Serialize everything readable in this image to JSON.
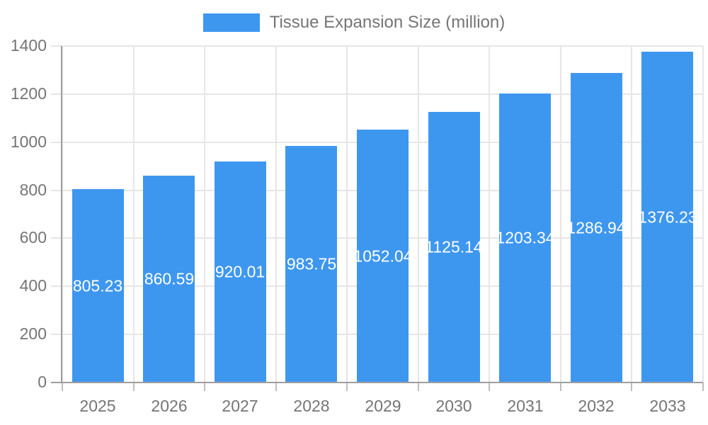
{
  "legend": {
    "label": "Tissue Expansion Size (million)",
    "swatch_color": "#3E97EF"
  },
  "chart_data": {
    "type": "bar",
    "title": "Tissue Expansion Size (million)",
    "series_name": "Tissue Expansion Size (million)",
    "categories": [
      "2025",
      "2026",
      "2027",
      "2028",
      "2029",
      "2030",
      "2031",
      "2032",
      "2033"
    ],
    "values": [
      805.23,
      860.59,
      920.01,
      983.75,
      1052.04,
      1125.14,
      1203.34,
      1286.94,
      1376.23
    ],
    "value_labels": [
      "805.23",
      "860.59",
      "920.01",
      "983.75",
      "1052.04",
      "1125.14",
      "1203.34",
      "1286.94",
      "1376.23"
    ],
    "xlabel": "",
    "ylabel": "",
    "ylim": [
      0,
      1400
    ],
    "yticks": [
      0,
      200,
      400,
      600,
      800,
      1000,
      1200,
      1400
    ],
    "grid": true,
    "legend_position": "top",
    "colors": {
      "bar": "#3E97EF",
      "value_label": "#ffffff",
      "tick_label": "#757575",
      "gridline": "#e6e6e6",
      "axis_line": "#9e9e9e",
      "minor_tick": "#bdbdbd",
      "background": "#ffffff"
    }
  }
}
